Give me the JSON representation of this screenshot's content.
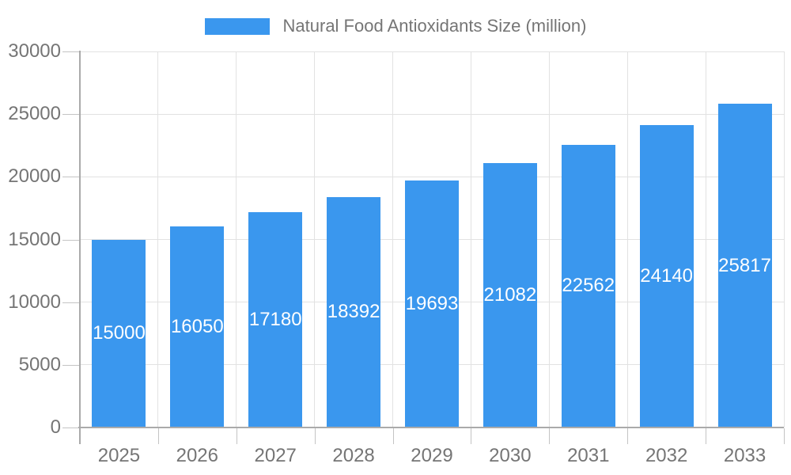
{
  "chart_data": {
    "type": "bar",
    "title": "Natural Food Antioxidants Size (million)",
    "categories": [
      "2025",
      "2026",
      "2027",
      "2028",
      "2029",
      "2030",
      "2031",
      "2032",
      "2033"
    ],
    "values": [
      15000,
      16050,
      17180,
      18392,
      19693,
      21082,
      22562,
      24140,
      25817
    ],
    "series": [
      {
        "name": "Natural Food Antioxidants Size (million)",
        "values": [
          15000,
          16050,
          17180,
          18392,
          19693,
          21082,
          22562,
          24140,
          25817
        ]
      }
    ],
    "xlabel": "",
    "ylabel": "",
    "ylim": [
      0,
      30000
    ],
    "yticks": [
      0,
      5000,
      10000,
      15000,
      20000,
      25000,
      30000
    ],
    "grid": true,
    "legend_position": "top-center",
    "bar_color": "#3A97EE",
    "value_label_color": "#FFFFFF",
    "axis_text_color": "#757575",
    "axis_line_color": "#AAAAAA",
    "gridline_color": "#E2E2E2",
    "background_color": "#FFFFFF"
  }
}
